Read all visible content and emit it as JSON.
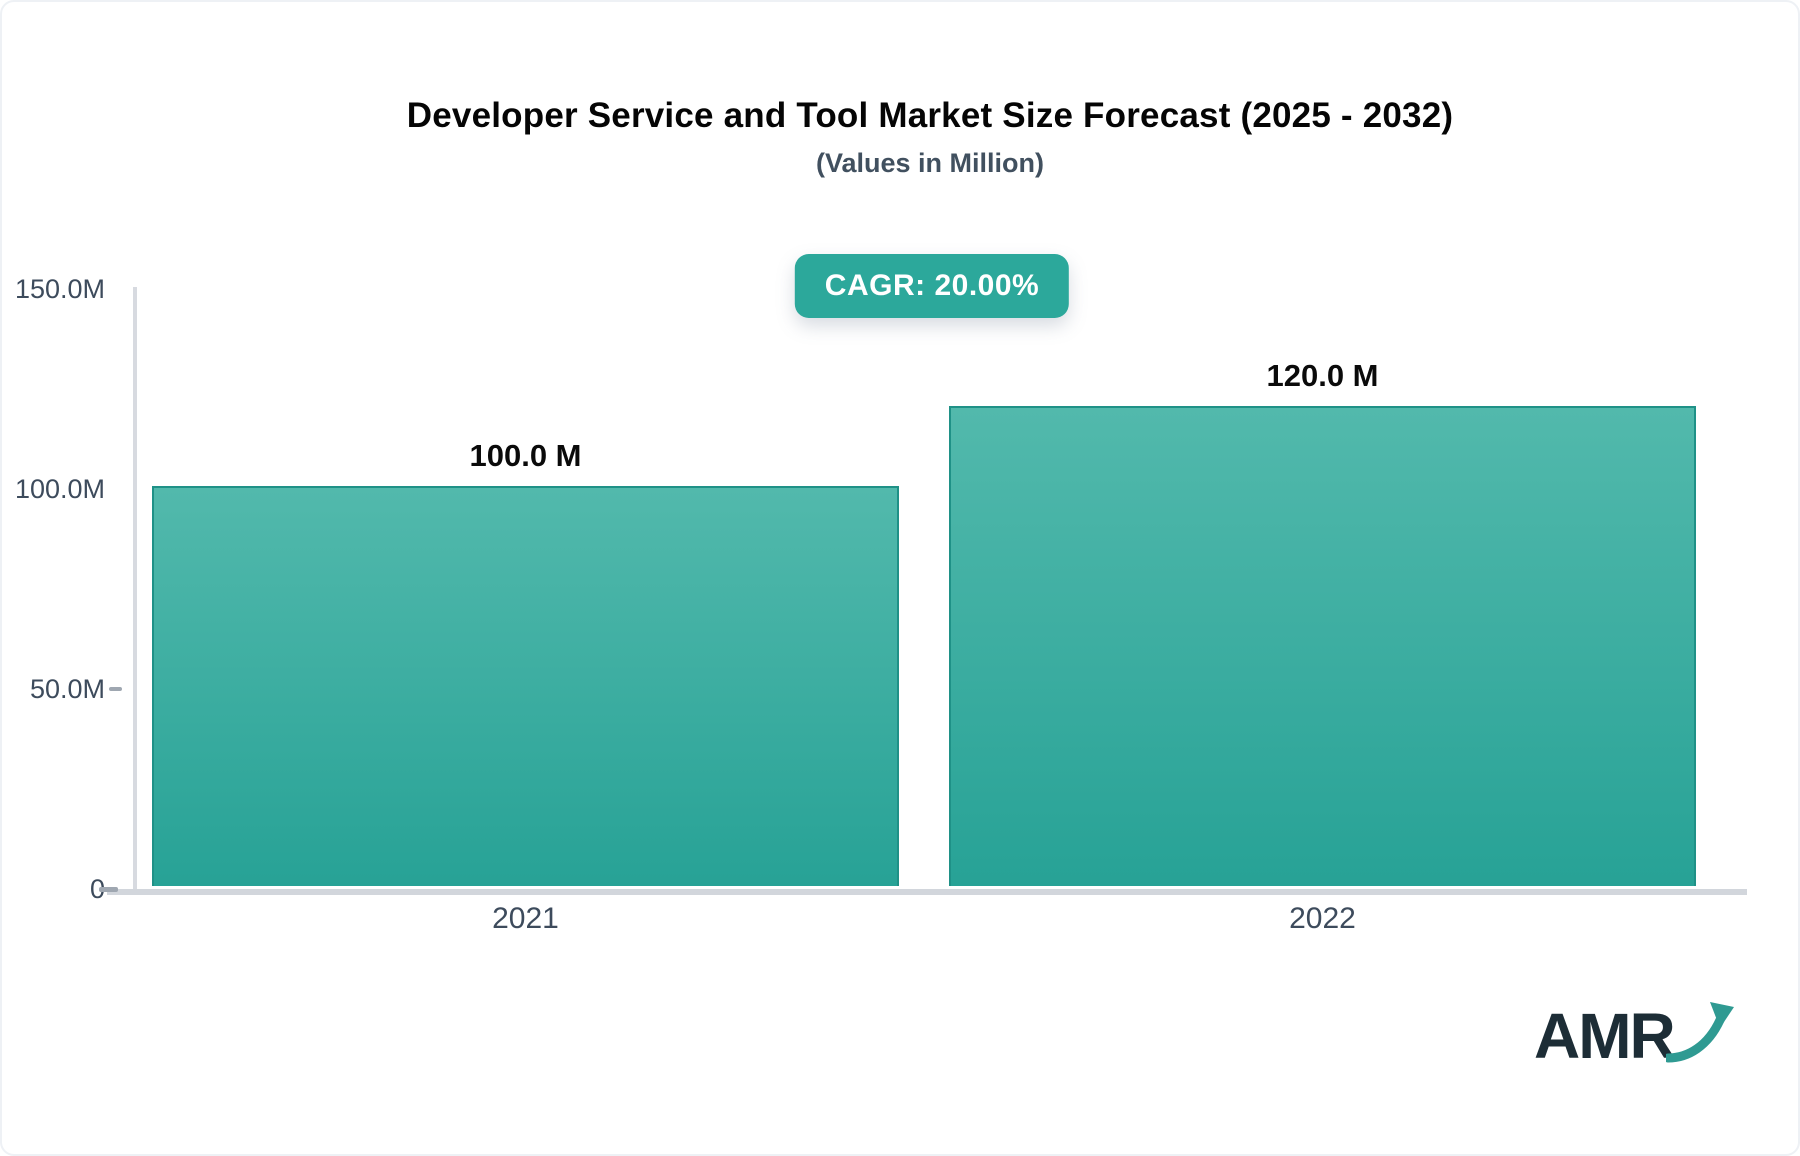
{
  "header": {
    "title": "Developer Service and Tool Market Size Forecast (2025 - 2032)",
    "subtitle": "(Values in Million)"
  },
  "badge": {
    "label": "CAGR: 20.00%",
    "bg_color": "#2ca89b",
    "text_color": "#ffffff"
  },
  "chart_data": {
    "type": "bar",
    "title": "Developer Service and Tool Market Size Forecast (2025 - 2032)",
    "subtitle": "(Values in Million)",
    "unit": "Million",
    "cagr_percent": 20.0,
    "categories": [
      "2021",
      "2022"
    ],
    "values": [
      100.0,
      120.0
    ],
    "value_labels": [
      "100.0 M",
      "120.0 M"
    ],
    "y_ticks": [
      "150.0M",
      "100.0M",
      "50.0M",
      "0"
    ],
    "y_tick_values": [
      150,
      100,
      50,
      0
    ],
    "ylim": [
      0,
      150
    ],
    "xlabel": "",
    "ylabel": "",
    "grid": false,
    "legend": "none",
    "bar_color_top": "#52b9ac",
    "bar_color_bottom": "#27a296",
    "bar_border_color": "#1f9187",
    "axis_color": "#d2d6dc",
    "label_color": "#3d4b5c"
  },
  "logo": {
    "text": "AMR",
    "icon": "trend-up-arrow-icon",
    "text_color": "#1d2d36",
    "arrow_color": "#2f9a92"
  }
}
